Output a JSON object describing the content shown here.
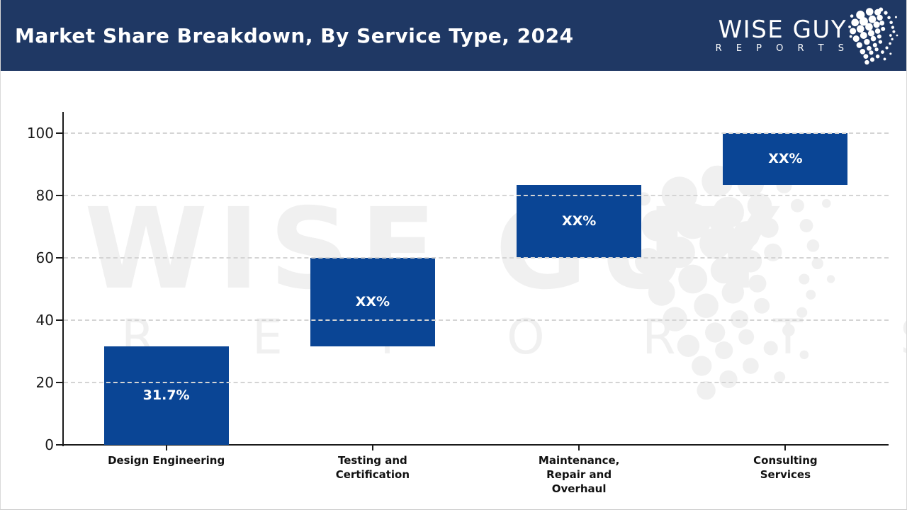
{
  "header": {
    "title": "Market Share Breakdown, By Service Type, 2024",
    "logo": {
      "name_line": "WISE GUY",
      "reports_line": "R E P O R T S"
    }
  },
  "watermark": {
    "name_line": "WISE GUY",
    "reports_line": "R E P O R T S"
  },
  "chart_data": {
    "type": "bar",
    "variant": "waterfall",
    "title": "Market Share Breakdown, By Service Type, 2024",
    "categories": [
      "Design Engineering",
      "Testing and\nCertification",
      "Maintenance,\nRepair and\nOverhaul",
      "Consulting\nServices"
    ],
    "series": [
      {
        "name": "Market share (%)",
        "segments": [
          {
            "start": 0,
            "end": 31.7,
            "label": "31.7%"
          },
          {
            "start": 31.7,
            "end": 60,
            "label": "XX%"
          },
          {
            "start": 60,
            "end": 83.5,
            "label": "XX%"
          },
          {
            "start": 83.5,
            "end": 100,
            "label": "XX%"
          }
        ]
      }
    ],
    "xlabel": "",
    "ylabel": "",
    "yticks": [
      0,
      20,
      40,
      60,
      80,
      100
    ],
    "ylim": [
      0,
      106.8
    ],
    "grid": {
      "axis": "y",
      "style": "dashed",
      "color": "#d4d4d4",
      "above_bars": true
    },
    "legend": "none",
    "bar_color": "#0a4595",
    "bar_label_color": "#ffffff"
  },
  "colors": {
    "header_bg": "#1f3864",
    "page_bg": "#ffffff",
    "bar": "#0a4595",
    "axis": "#1a1a1a",
    "grid": "#d4d4d4",
    "watermark": "#f0f0f0",
    "frame_border": "#d9d9d9"
  }
}
